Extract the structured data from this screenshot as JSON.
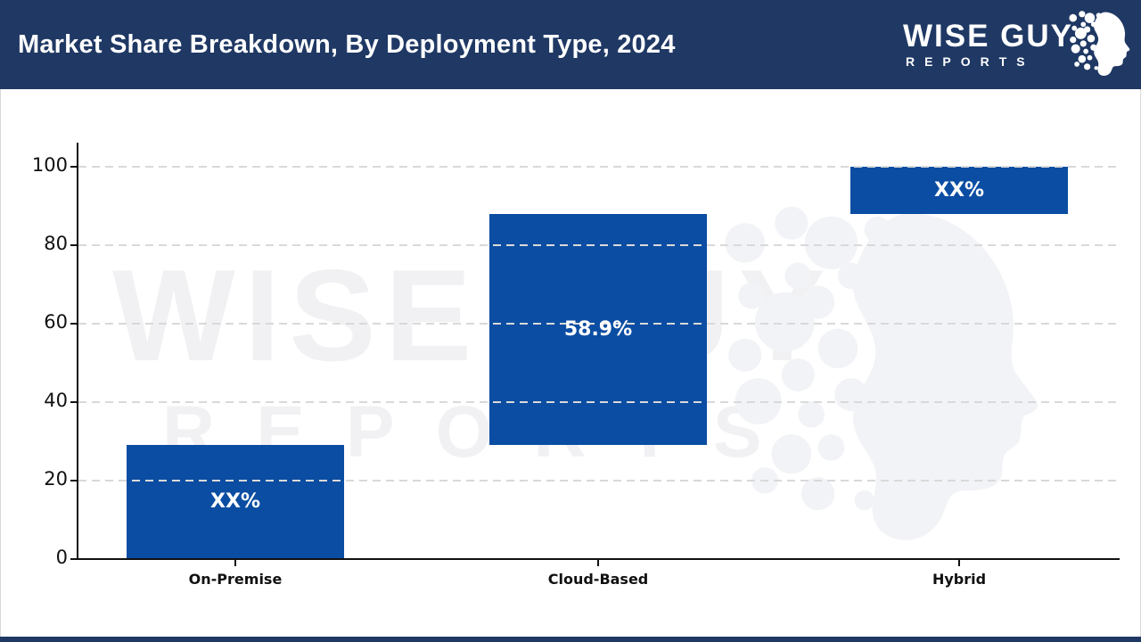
{
  "header": {
    "title": "Market Share Breakdown, By Deployment Type, 2024",
    "logo_line1": "WISE GUY",
    "logo_line2": "REPORTS"
  },
  "watermark": {
    "line1": "WISE GUY",
    "line2": "REPORTS"
  },
  "chart_data": {
    "type": "bar",
    "subtype": "stacked-segment-waterfall",
    "title": "Market Share Breakdown, By Deployment Type, 2024",
    "categories": [
      "On-Premise",
      "Cloud-Based",
      "Hybrid"
    ],
    "segments": [
      {
        "category": "On-Premise",
        "start": 0,
        "end": 29,
        "label": "XX%"
      },
      {
        "category": "Cloud-Based",
        "start": 29,
        "end": 87.9,
        "label": "58.9%"
      },
      {
        "category": "Hybrid",
        "start": 87.9,
        "end": 100,
        "label": "XX%"
      }
    ],
    "xlabel": "",
    "ylabel": "",
    "ylim": [
      0,
      100
    ],
    "yticks": [
      0,
      20,
      40,
      60,
      80,
      100
    ],
    "grid": "horizontal-dashed",
    "legend": "none",
    "bar_color": "#0b4da2",
    "colors": {
      "header_navy": "#1f3864",
      "bar_blue": "#0b4da2",
      "gridline": "#d9d9d9",
      "axis": "#111111",
      "bar_label_text": "#ffffff",
      "watermark": "#f1f1f4"
    }
  }
}
